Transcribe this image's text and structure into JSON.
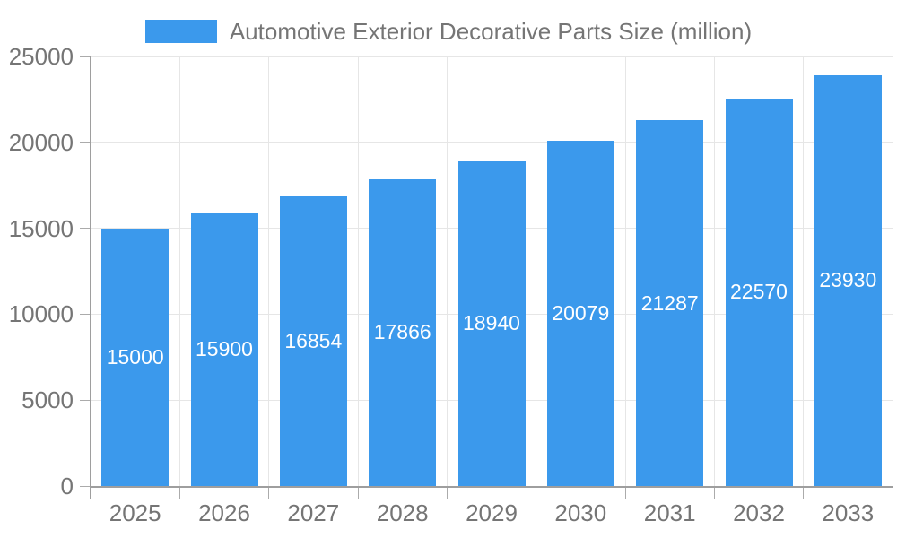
{
  "legend": {
    "label": "Automotive Exterior Decorative Parts Size (million)"
  },
  "chart_data": {
    "type": "bar",
    "title": "Automotive Exterior Decorative Parts Size (million)",
    "series_name": "Automotive Exterior Decorative Parts Size (million)",
    "categories": [
      "2025",
      "2026",
      "2027",
      "2028",
      "2029",
      "2030",
      "2031",
      "2032",
      "2033"
    ],
    "values": [
      15000,
      15900,
      16854,
      17866,
      18940,
      20079,
      21287,
      22570,
      23930
    ],
    "value_labels": [
      "15000",
      "15900",
      "16854",
      "17866",
      "18940",
      "20079",
      "21287",
      "22570",
      "23930"
    ],
    "xlabel": "",
    "ylabel": "",
    "ylim": [
      0,
      25000
    ],
    "yticks": [
      0,
      5000,
      10000,
      15000,
      20000,
      25000
    ],
    "grid": true,
    "legend_position": "top-center",
    "bar_color": "#3b99ec",
    "value_label_color": "#ffffff",
    "axis_text_color": "#757575",
    "gridline_color": "#e6e6e6",
    "axis_line_color": "#9e9e9e",
    "background_color": "#ffffff"
  }
}
